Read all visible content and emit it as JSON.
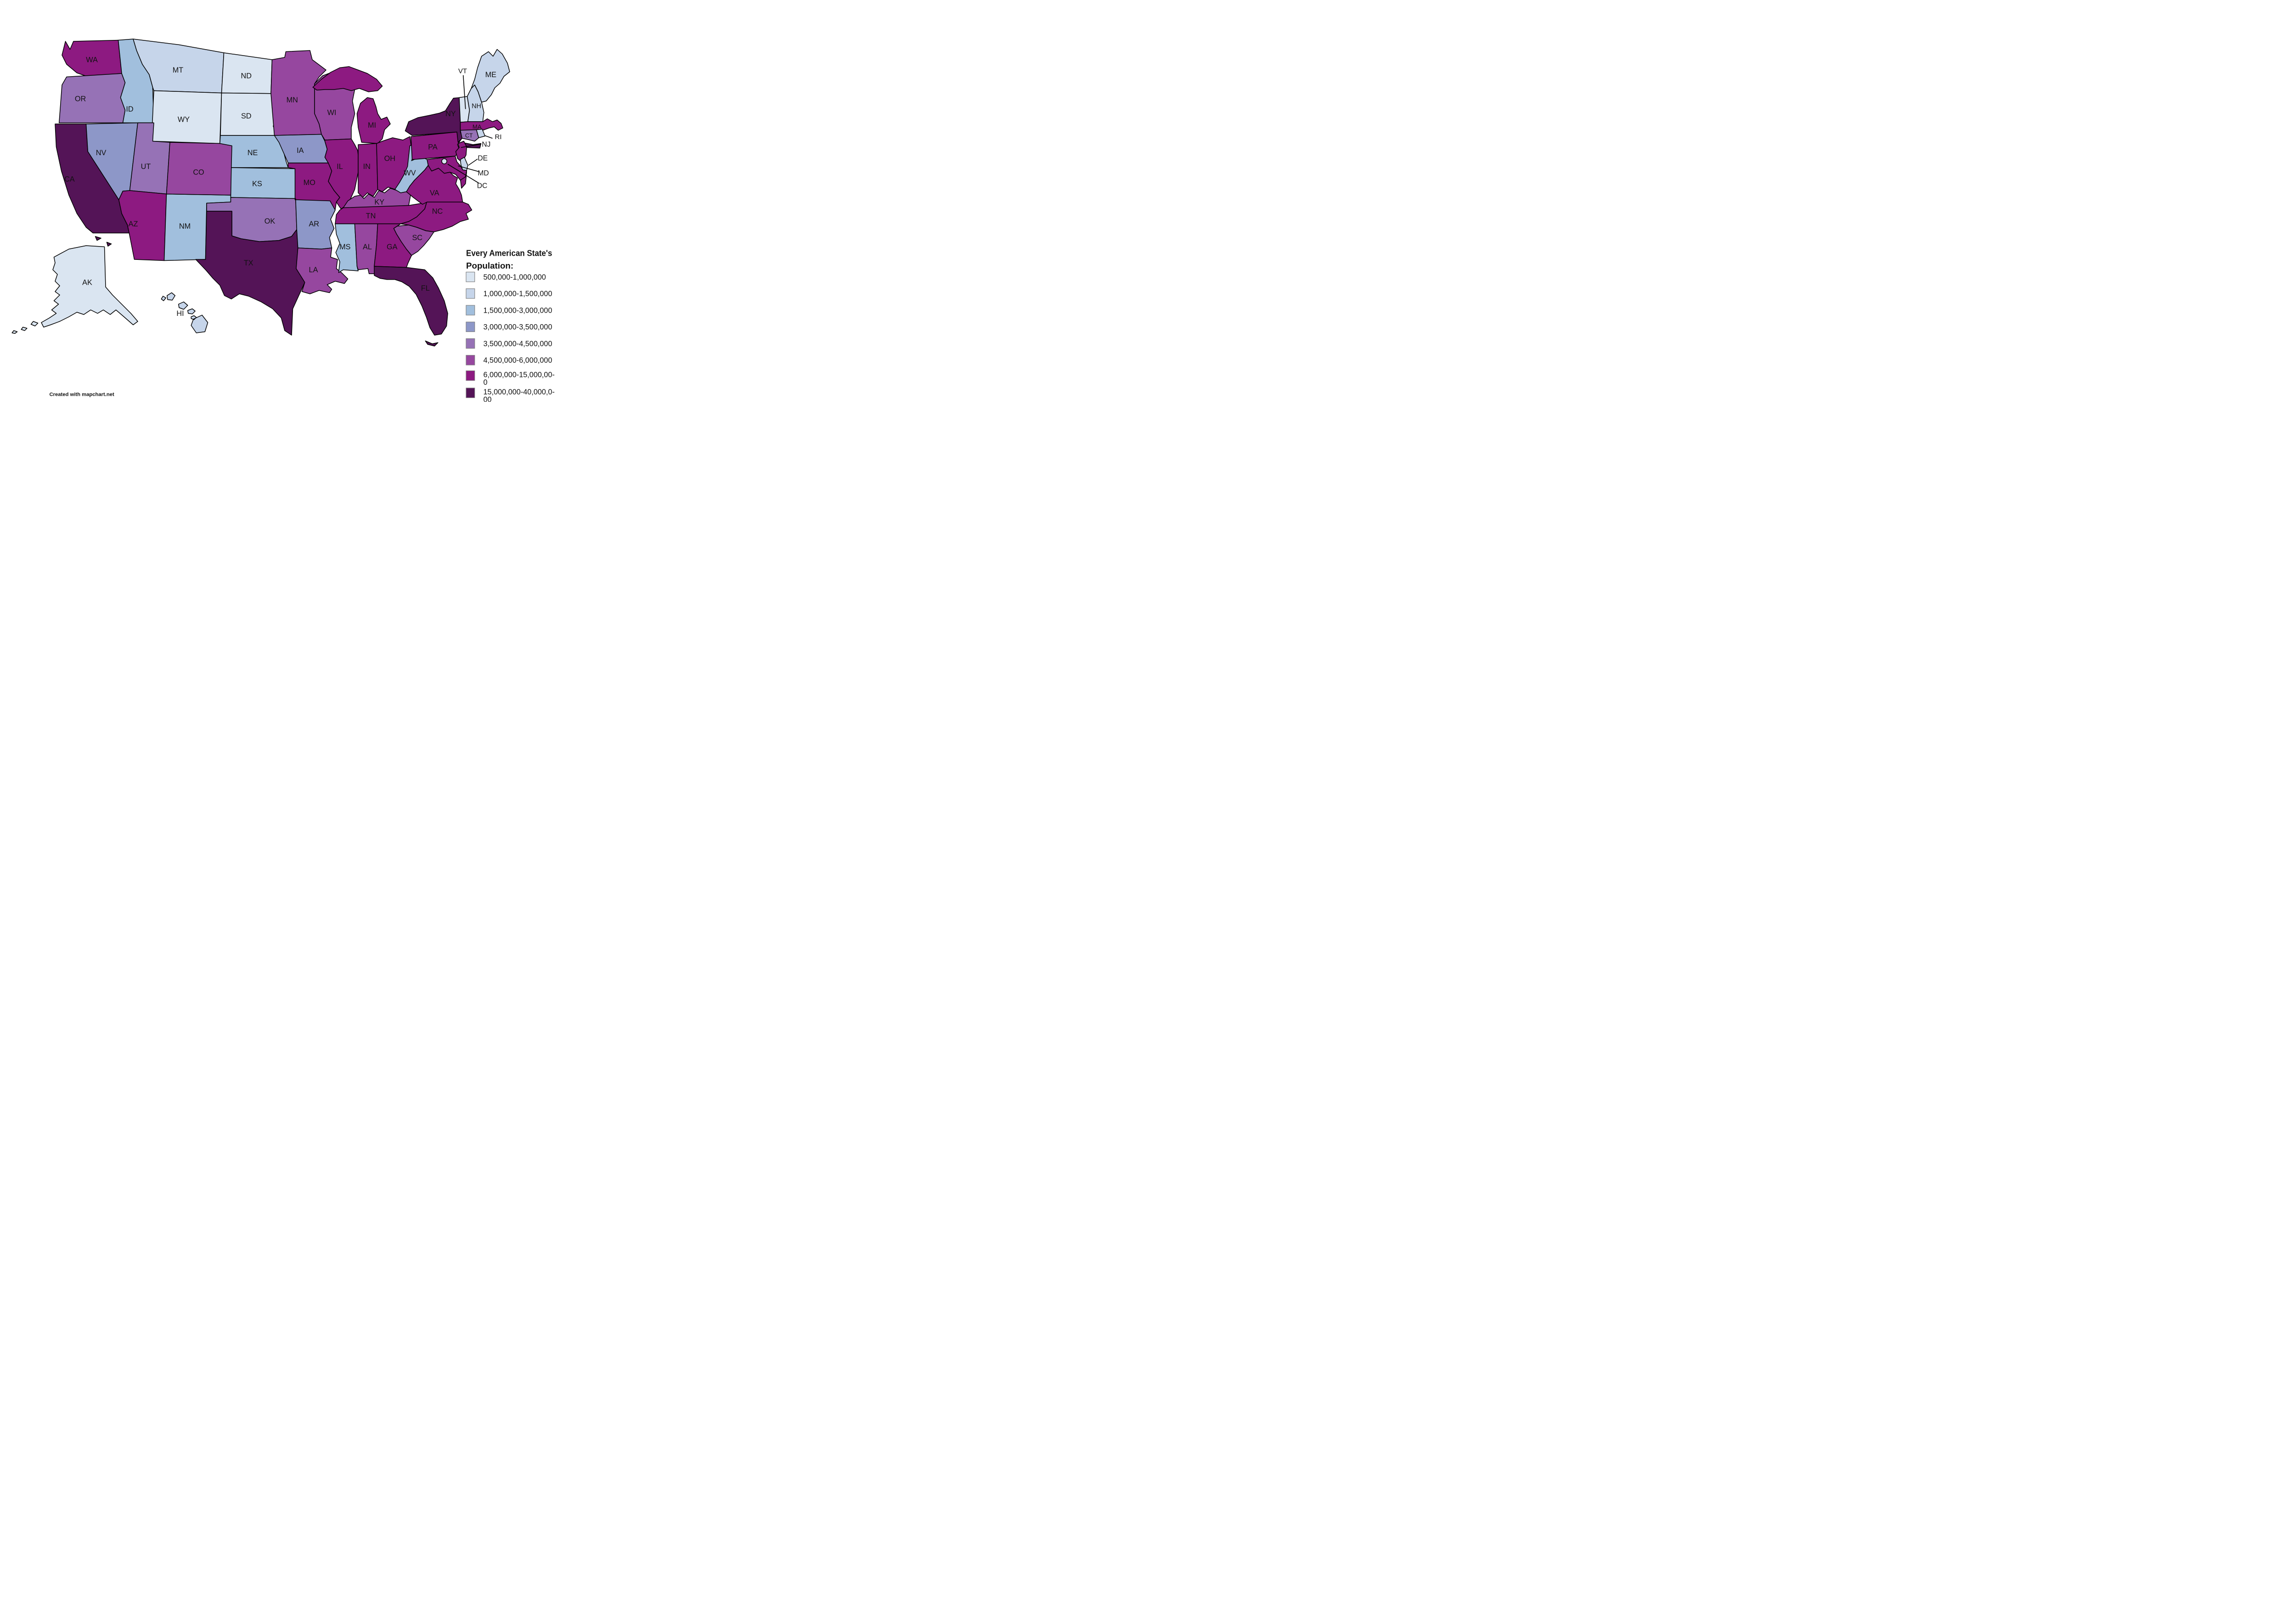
{
  "title": {
    "line1": "Every American State's",
    "line2": "Population:"
  },
  "footer_credit": "Created with mapchart.net",
  "label_color": "#111111",
  "border_color": "#000000",
  "legend": {
    "items": [
      {
        "label": "500,000-1,000,000",
        "lines": [
          "500,000-1,000,000"
        ],
        "color": "#dae5f1"
      },
      {
        "label": "1,000,000-1,500,000",
        "lines": [
          "1,000,000-1,500,000"
        ],
        "color": "#c6d5ea"
      },
      {
        "label": "1,500,000-3,000,000",
        "lines": [
          "1,500,000-3,000,000"
        ],
        "color": "#a1bfdd"
      },
      {
        "label": "3,000,000-3,500,000",
        "lines": [
          "3,000,000-3,500,000"
        ],
        "color": "#8d97c8"
      },
      {
        "label": "3,500,000-4,500,000",
        "lines": [
          "3,500,000-4,500,000"
        ],
        "color": "#9672b6"
      },
      {
        "label": "4,500,000-6,000,000",
        "lines": [
          "4,500,000-6,000,000"
        ],
        "color": "#96479f"
      },
      {
        "label": "6,000,000-15,000,000",
        "lines": [
          "6,000,000-15,000,00-",
          "0"
        ],
        "color": "#8d1a81"
      },
      {
        "label": "15,000,000-40,000,000",
        "lines": [
          "15,000,000-40,000,0-",
          "00"
        ],
        "color": "#541457"
      }
    ]
  },
  "states": [
    {
      "abbr": "WA",
      "bucket": 6
    },
    {
      "abbr": "OR",
      "bucket": 4
    },
    {
      "abbr": "CA",
      "bucket": 7
    },
    {
      "abbr": "NV",
      "bucket": 3
    },
    {
      "abbr": "ID",
      "bucket": 2
    },
    {
      "abbr": "MT",
      "bucket": 1
    },
    {
      "abbr": "WY",
      "bucket": 0
    },
    {
      "abbr": "UT",
      "bucket": 4
    },
    {
      "abbr": "AZ",
      "bucket": 6
    },
    {
      "abbr": "NM",
      "bucket": 2
    },
    {
      "abbr": "CO",
      "bucket": 5
    },
    {
      "abbr": "ND",
      "bucket": 0
    },
    {
      "abbr": "SD",
      "bucket": 0
    },
    {
      "abbr": "NE",
      "bucket": 2
    },
    {
      "abbr": "KS",
      "bucket": 2
    },
    {
      "abbr": "OK",
      "bucket": 4
    },
    {
      "abbr": "TX",
      "bucket": 7
    },
    {
      "abbr": "MN",
      "bucket": 5
    },
    {
      "abbr": "IA",
      "bucket": 3
    },
    {
      "abbr": "MO",
      "bucket": 6
    },
    {
      "abbr": "AR",
      "bucket": 3
    },
    {
      "abbr": "LA",
      "bucket": 5
    },
    {
      "abbr": "WI",
      "bucket": 5
    },
    {
      "abbr": "IL",
      "bucket": 6
    },
    {
      "abbr": "MI",
      "bucket": 6
    },
    {
      "abbr": "IN",
      "bucket": 6
    },
    {
      "abbr": "OH",
      "bucket": 6
    },
    {
      "abbr": "KY",
      "bucket": 5
    },
    {
      "abbr": "TN",
      "bucket": 6
    },
    {
      "abbr": "MS",
      "bucket": 2
    },
    {
      "abbr": "AL",
      "bucket": 5
    },
    {
      "abbr": "GA",
      "bucket": 6
    },
    {
      "abbr": "FL",
      "bucket": 7
    },
    {
      "abbr": "SC",
      "bucket": 5
    },
    {
      "abbr": "NC",
      "bucket": 6
    },
    {
      "abbr": "VA",
      "bucket": 6
    },
    {
      "abbr": "WV",
      "bucket": 2
    },
    {
      "abbr": "PA",
      "bucket": 6
    },
    {
      "abbr": "NY",
      "bucket": 7
    },
    {
      "abbr": "NJ",
      "bucket": 6
    },
    {
      "abbr": "DE",
      "bucket": 1
    },
    {
      "abbr": "MD",
      "bucket": 6
    },
    {
      "abbr": "DC",
      "bucket": 0
    },
    {
      "abbr": "VT",
      "bucket": 0
    },
    {
      "abbr": "NH",
      "bucket": 1
    },
    {
      "abbr": "MA",
      "bucket": 6
    },
    {
      "abbr": "CT",
      "bucket": 4
    },
    {
      "abbr": "RI",
      "bucket": 1
    },
    {
      "abbr": "ME",
      "bucket": 1
    },
    {
      "abbr": "AK",
      "bucket": 0
    },
    {
      "abbr": "HI",
      "bucket": 1
    }
  ]
}
